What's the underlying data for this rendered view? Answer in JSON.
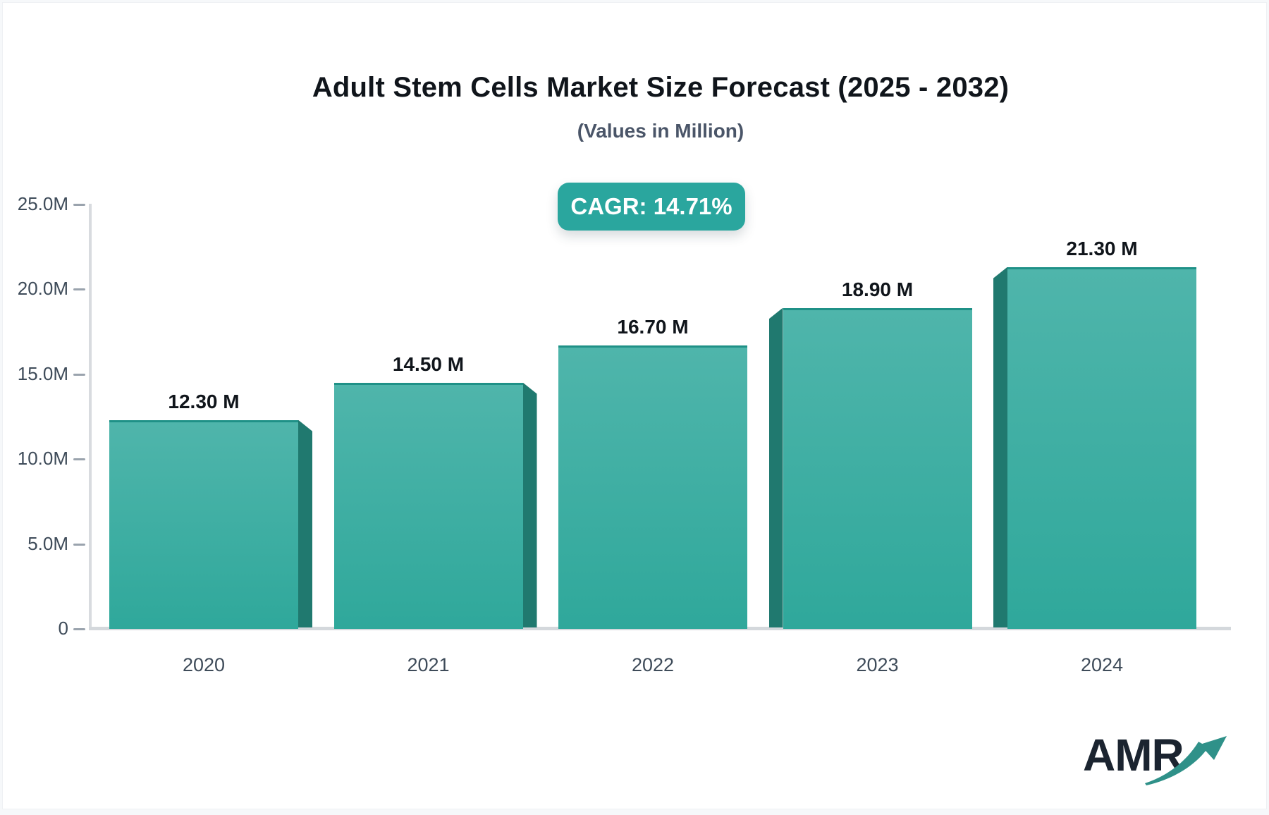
{
  "page": {
    "background": "#f6f8fa",
    "card_background": "#ffffff"
  },
  "header": {
    "title": "Adult Stem Cells Market Size Forecast (2025 - 2032)",
    "subtitle": "(Values in Million)"
  },
  "badge": {
    "label": "CAGR: 14.71%",
    "background": "#2aa69e",
    "text_color": "#ffffff"
  },
  "chart_data": {
    "type": "bar",
    "categories": [
      "2020",
      "2021",
      "2022",
      "2023",
      "2024"
    ],
    "values": [
      12.3,
      14.5,
      16.7,
      18.9,
      21.3
    ],
    "bar_labels": [
      "12.30 M",
      "14.50 M",
      "16.70 M",
      "18.90 M",
      "21.30 M"
    ],
    "unit": "Million",
    "title": "Adult Stem Cells Market Size Forecast (2025 - 2032)",
    "xlabel": "",
    "ylabel": "",
    "ylim": [
      0,
      25
    ],
    "grid": false,
    "legend": "none",
    "y_ticks": [
      {
        "value": 25,
        "label": "25.0M"
      },
      {
        "value": 20,
        "label": "20.0M"
      },
      {
        "value": 15,
        "label": "15.0M"
      },
      {
        "value": 10,
        "label": "10.0M"
      },
      {
        "value": 5,
        "label": "5.0M"
      },
      {
        "value": 0,
        "label": "0"
      }
    ],
    "colors": {
      "bar_face_top": "#4fb5ab",
      "bar_face_bottom": "#2fa89b",
      "bar_top_edge": "#1f9187",
      "bar_side": "#20796f",
      "axis_line": "#d4d8dc",
      "tick_text": "#3e4b59",
      "value_text": "#10151b"
    }
  },
  "logo": {
    "text": "AMR",
    "color": "#1b2430",
    "arrow_color": "#2f9189"
  }
}
